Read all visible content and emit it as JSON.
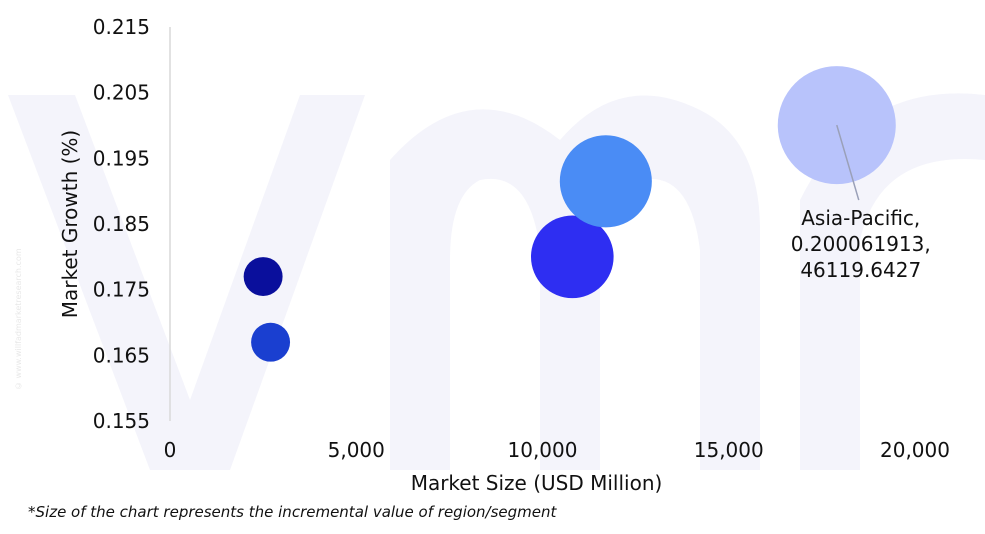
{
  "chart_data": {
    "type": "bubble",
    "xlabel": "Market Size (USD Million)",
    "ylabel": "Market Growth (%)",
    "xlim": [
      0,
      20000
    ],
    "ylim": [
      0.155,
      0.215
    ],
    "x_ticks": [
      0,
      5000,
      10000,
      15000,
      20000
    ],
    "x_tick_labels": [
      "0",
      "5,000",
      "10,000",
      "15,000",
      "20,000"
    ],
    "y_ticks": [
      0.155,
      0.165,
      0.175,
      0.185,
      0.195,
      0.205,
      0.215
    ],
    "y_tick_labels": [
      "0.155",
      "0.165",
      "0.175",
      "0.185",
      "0.195",
      "0.205",
      "0.215"
    ],
    "grid": false,
    "points": [
      {
        "x": 2500,
        "y": 0.177,
        "size_rel": 0.33,
        "color": "#0a0f9c"
      },
      {
        "x": 2700,
        "y": 0.167,
        "size_rel": 0.33,
        "color": "#1a3fd0"
      },
      {
        "x": 10800,
        "y": 0.18,
        "size_rel": 0.7,
        "color": "#2e2ef2"
      },
      {
        "x": 11700,
        "y": 0.1915,
        "size_rel": 0.78,
        "color": "#4a8cf5"
      },
      {
        "x": 17900,
        "y": 0.200061913,
        "size": 46119.6427,
        "size_rel": 1.0,
        "color": "#b8c3fb",
        "label": [
          "Asia-Pacific,",
          "0.200061913,",
          "46119.6427"
        ]
      }
    ],
    "watermark_color": "#f4f4fb"
  },
  "watermark_text": "© www.willfadmarketresearch.com",
  "footnote": "*Size of the chart represents the incremental value of region/segment"
}
